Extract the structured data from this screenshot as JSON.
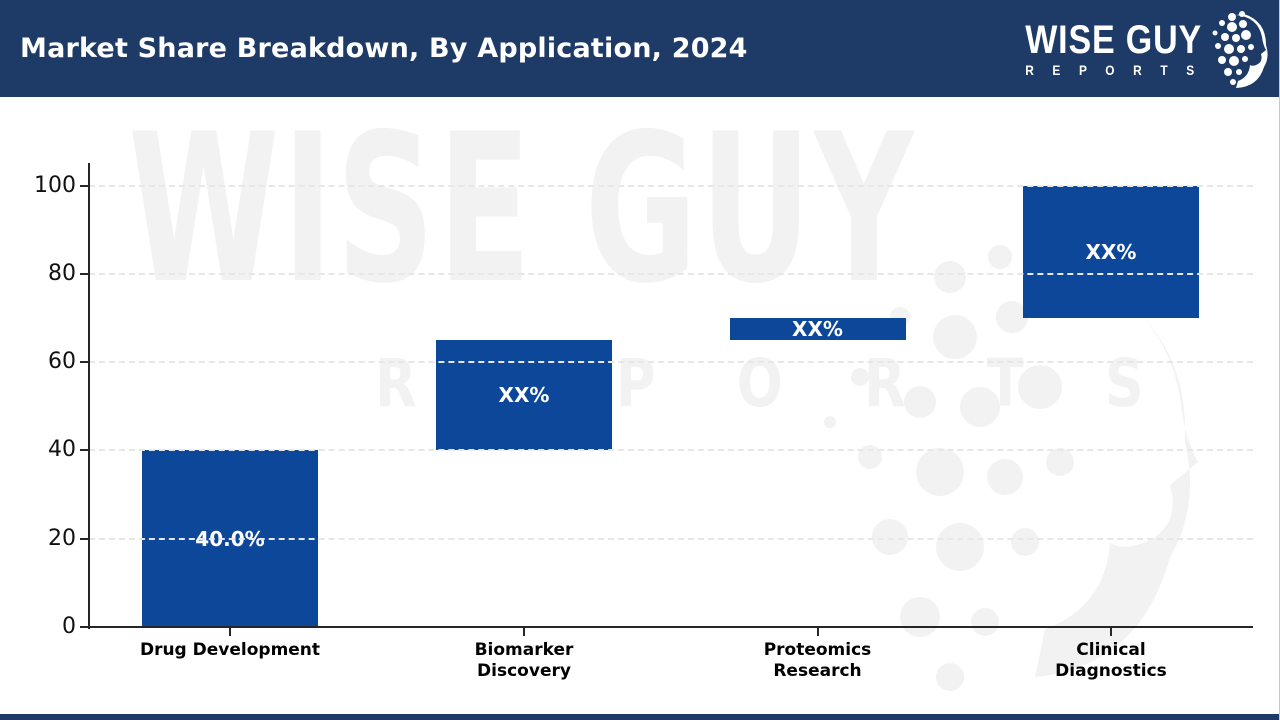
{
  "header": {
    "title": "Market Share Breakdown, By Application, 2024",
    "bg_color": "#1e3a66",
    "logo": {
      "line1": "WISE GUY",
      "line2": "R E P O R T S"
    }
  },
  "watermark": {
    "line1": "WISE GUY",
    "line2": "R E P O R T S"
  },
  "chart_data": {
    "type": "bar",
    "subtype": "waterfall",
    "title": "Market Share Breakdown, By Application, 2024",
    "categories": [
      "Drug Development",
      "Biomarker Discovery",
      "Proteomics Research",
      "Clinical Diagnostics"
    ],
    "category_label_lines": [
      [
        "Drug Development"
      ],
      [
        "Biomarker",
        "Discovery"
      ],
      [
        "Proteomics",
        "Research"
      ],
      [
        "Clinical",
        "Diagnostics"
      ]
    ],
    "segments": [
      {
        "category": "Drug Development",
        "start": 0,
        "end": 40,
        "label": "40.0%"
      },
      {
        "category": "Biomarker Discovery",
        "start": 40,
        "end": 65,
        "label": "XX%"
      },
      {
        "category": "Proteomics Research",
        "start": 65,
        "end": 70,
        "label": "XX%"
      },
      {
        "category": "Clinical Diagnostics",
        "start": 70,
        "end": 100,
        "label": "XX%"
      }
    ],
    "xlabel": "",
    "ylabel": "",
    "yticks": [
      0,
      20,
      40,
      60,
      80,
      100
    ],
    "ylim": [
      0,
      105
    ],
    "grid": "dashed-horizontal",
    "legend": "none",
    "bar_color": "#0d4799",
    "grid_color": "#e7e7e7",
    "axis_color": "#262626"
  }
}
